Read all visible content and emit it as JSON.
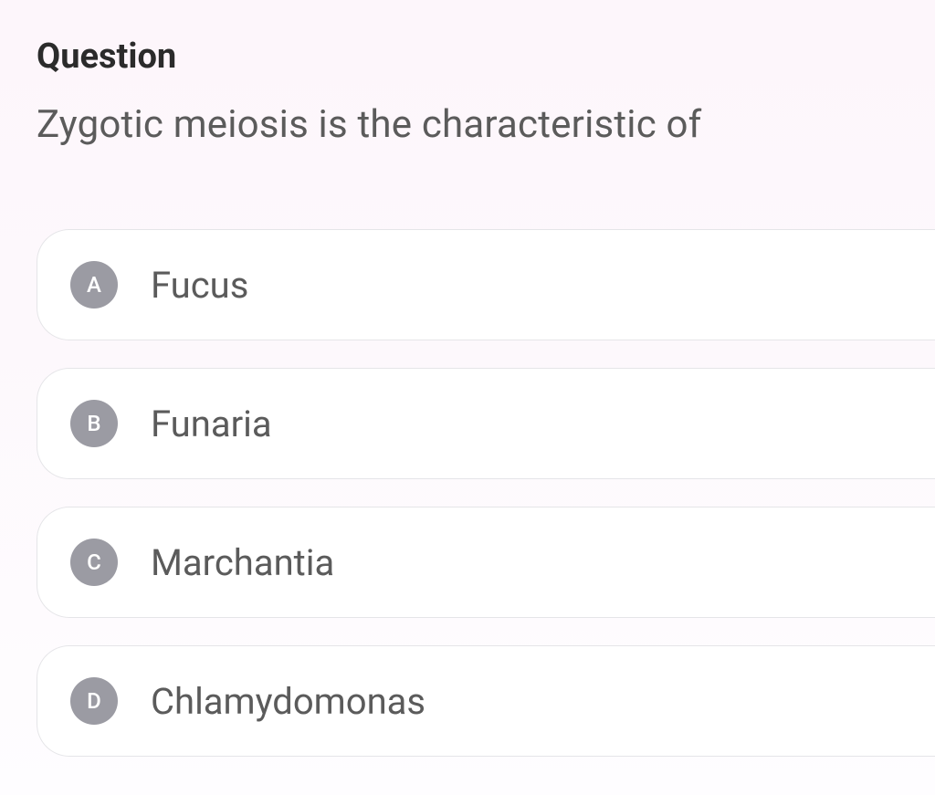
{
  "question": {
    "heading": "Question",
    "text": "Zygotic meiosis is the characteristic of"
  },
  "options": [
    {
      "letter": "A",
      "label": "Fucus"
    },
    {
      "letter": "B",
      "label": "Funaria"
    },
    {
      "letter": "C",
      "label": "Marchantia"
    },
    {
      "letter": "D",
      "label": "Chlamydomonas"
    }
  ],
  "styles": {
    "background_gradient_start": "#fdf6fb",
    "background_gradient_end": "#fefdff",
    "heading_color": "#2b2b2b",
    "text_color": "#5b5b5b",
    "option_bg": "#ffffff",
    "option_border": "#e5e5e8",
    "badge_bg": "#9b9ba3",
    "badge_text": "#ffffff",
    "heading_fontsize": 38,
    "question_fontsize": 42,
    "option_fontsize": 40,
    "badge_fontsize": 24,
    "option_radius": 36,
    "badge_size": 52,
    "option_height": 122,
    "option_gap": 30
  }
}
